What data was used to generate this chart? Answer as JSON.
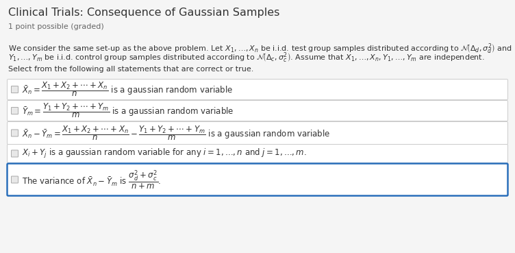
{
  "title": "Clinical Trials: Consequence of Gaussian Samples",
  "subtitle": "1 point possible (graded)",
  "background_color": "#f5f5f5",
  "box_bg": "#ffffff",
  "box_border": "#cccccc",
  "highlight_border": "#2a6fbb",
  "text_color": "#333333",
  "select_text": "Select from the following all statements that are correct or true.",
  "options": [
    "$\\bar{X}_n = \\dfrac{X_1+X_2+\\cdots+X_n}{n}$ is a gaussian random variable",
    "$\\bar{Y}_m = \\dfrac{Y_1+Y_2+\\cdots+Y_m}{m}$ is a gaussian random variable",
    "$\\bar{X}_n - \\bar{Y}_m = \\dfrac{X_1+X_2+\\cdots+X_n}{n} - \\dfrac{Y_1+Y_2+\\cdots+Y_m}{m}$ is a gaussian random variable",
    "$X_i + Y_j$ is a gaussian random variable for any $i = 1, \\ldots, n$ and $j = 1, \\ldots, m.$",
    "The variance of $\\bar{X}_n - \\bar{Y}_m$ is $\\dfrac{\\sigma_d^2+\\sigma_c^2}{n+m}$."
  ],
  "highlighted_option_index": 4,
  "title_fontsize": 11.5,
  "subtitle_fontsize": 8,
  "body_fontsize": 8,
  "option_fontsize": 8.5
}
